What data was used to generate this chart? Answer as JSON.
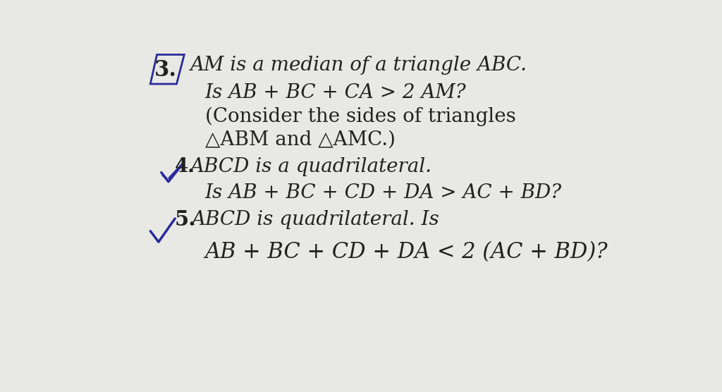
{
  "background_color": "#e8e8e4",
  "title_text": "AM is a median of a triangle ABC.",
  "line2": "Is AB + BC + CA > 2 AM?",
  "line3": "(Consider the sides of triangles",
  "line4": "△ABM and △AMC.)",
  "line5": "ABCD is a quadrilateral.",
  "line6": "Is AB + BC + CD + DA > AC + BD?",
  "line7": "ABCD is quadrilateral. Is",
  "line8": "AB + BC + CD + DA < 2 (AC + BD)?",
  "text_color": "#222222",
  "blue_color": "#2a2a9a",
  "font_size": 20
}
